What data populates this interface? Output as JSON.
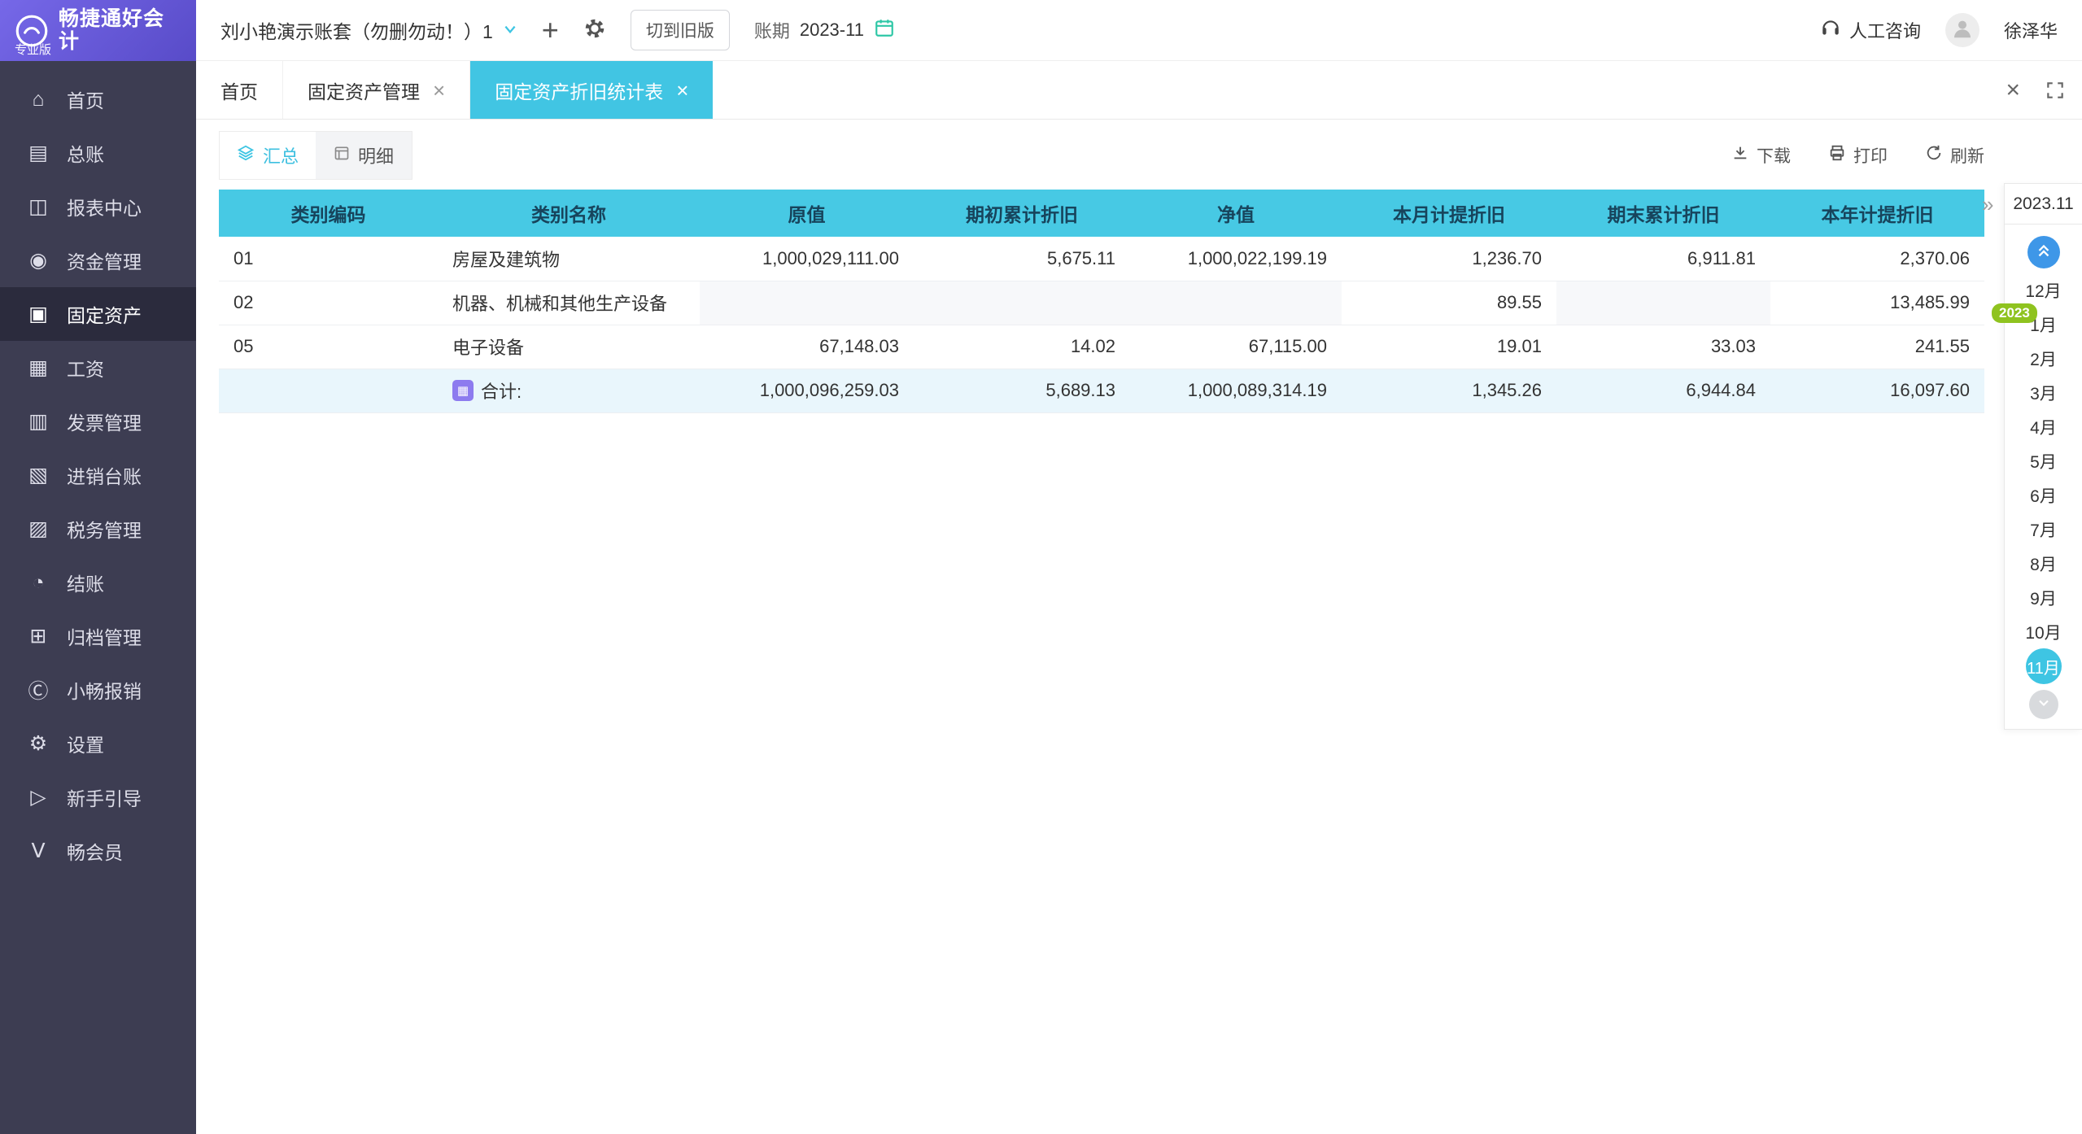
{
  "topbar": {
    "brand": {
      "title": "畅捷通好会计",
      "subtitle": "专业版"
    },
    "account": {
      "value": "刘小艳演示账套（勿删勿动！）1"
    },
    "switch_old": "切到旧版",
    "period": {
      "label": "账期",
      "value": "2023-11"
    },
    "support_label": "人工咨询",
    "username": "徐泽华"
  },
  "sidebar": {
    "items": [
      {
        "id": "home",
        "label": "首页",
        "icon": "home",
        "active": false
      },
      {
        "id": "general-ledger",
        "label": "总账",
        "icon": "ledger",
        "active": false
      },
      {
        "id": "report-center",
        "label": "报表中心",
        "icon": "chart",
        "active": false
      },
      {
        "id": "fund-management",
        "label": "资金管理",
        "icon": "fund",
        "active": false
      },
      {
        "id": "fixed-assets",
        "label": "固定资产",
        "icon": "assets",
        "active": true
      },
      {
        "id": "payroll",
        "label": "工资",
        "icon": "payroll",
        "active": false
      },
      {
        "id": "invoice-management",
        "label": "发票管理",
        "icon": "invoice",
        "active": false
      },
      {
        "id": "purchase-sale-ledger",
        "label": "进销台账",
        "icon": "inout",
        "active": false
      },
      {
        "id": "tax-management",
        "label": "税务管理",
        "icon": "tax",
        "active": false
      },
      {
        "id": "closing",
        "label": "结账",
        "icon": "closing",
        "active": false
      },
      {
        "id": "archive-management",
        "label": "归档管理",
        "icon": "archive",
        "active": false
      },
      {
        "id": "expense",
        "label": "小畅报销",
        "icon": "expense",
        "active": false
      },
      {
        "id": "settings",
        "label": "设置",
        "icon": "gear",
        "active": false
      },
      {
        "id": "beginner-guide",
        "label": "新手引导",
        "icon": "guide",
        "active": false
      },
      {
        "id": "member",
        "label": "畅会员",
        "icon": "member",
        "active": false
      }
    ]
  },
  "tabs": [
    {
      "id": "home",
      "label": "首页",
      "closable": false,
      "active": false
    },
    {
      "id": "fixed-assets-management",
      "label": "固定资产管理",
      "closable": true,
      "active": false
    },
    {
      "id": "depreciation-report",
      "label": "固定资产折旧统计表",
      "closable": true,
      "active": true
    }
  ],
  "toolbar": {
    "view_tabs": [
      {
        "id": "summary",
        "label": "汇总",
        "icon": "layers",
        "active": true
      },
      {
        "id": "detail",
        "label": "明细",
        "icon": "grid",
        "active": false
      }
    ],
    "actions": [
      {
        "id": "download",
        "label": "下载",
        "icon": "download"
      },
      {
        "id": "print",
        "label": "打印",
        "icon": "print"
      },
      {
        "id": "refresh",
        "label": "刷新",
        "icon": "refresh"
      }
    ]
  },
  "table": {
    "columns": [
      "类别编码",
      "类别名称",
      "原值",
      "期初累计折旧",
      "净值",
      "本月计提折旧",
      "期末累计折旧",
      "本年计提折旧"
    ],
    "rows": [
      [
        "01",
        "房屋及建筑物",
        "1,000,029,111.00",
        "5,675.11",
        "1,000,022,199.19",
        "1,236.70",
        "6,911.81",
        "2,370.06"
      ],
      [
        "02",
        "机器、机械和其他生产设备",
        "",
        "",
        "",
        "89.55",
        "",
        "13,485.99"
      ],
      [
        "05",
        "电子设备",
        "67,148.03",
        "14.02",
        "67,115.00",
        "19.01",
        "33.03",
        "241.55"
      ]
    ],
    "total_label": "合计:",
    "total": [
      "1,000,096,259.03",
      "5,689.13",
      "1,000,089,314.19",
      "1,345.26",
      "6,944.84",
      "16,097.60"
    ]
  },
  "period_panel": {
    "current": "2023.11",
    "year_badge": "2023",
    "months_all": [
      "12月",
      "1月",
      "2月",
      "3月",
      "4月",
      "5月",
      "6月",
      "7月",
      "8月",
      "9月",
      "10月",
      "11月"
    ],
    "selected_month": "11月"
  },
  "colors": {
    "accent_teal": "#41C5E3",
    "table_header": "#47C9E4",
    "sidebar_bg": "#3D3D52",
    "sidebar_active": "#2B2B3D",
    "brand_purple": "#6658D8",
    "total_row_bg": "#E9F6FC",
    "year_badge_green": "#8FC31F",
    "scroll_up_blue": "#3E97E8"
  }
}
